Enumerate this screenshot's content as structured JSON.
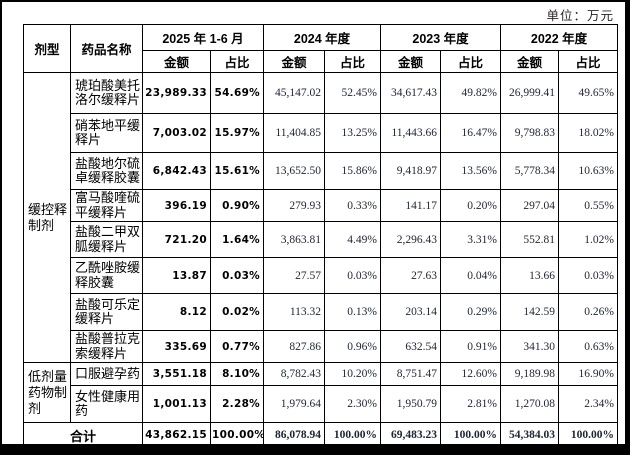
{
  "unit_label": "单位：万元",
  "table": {
    "headers": {
      "dosage_form": "剂型",
      "drug_name": "药品名称",
      "amount": "金额",
      "ratio": "占比",
      "periods": [
        {
          "label": "2025 年 1-6 月"
        },
        {
          "label": "2024 年度"
        },
        {
          "label": "2023 年度"
        },
        {
          "label": "2022 年度"
        }
      ]
    },
    "groups": [
      {
        "dosage_form": "缓控释制剂",
        "drugs": [
          {
            "name": "琥珀酸美托洛尔缓释片",
            "values": [
              "23,989.33",
              "54.69%",
              "45,147.02",
              "52.45%",
              "34,617.43",
              "49.82%",
              "26,999.41",
              "49.65%"
            ]
          },
          {
            "name": "硝苯地平缓释片",
            "values": [
              "7,003.02",
              "15.97%",
              "11,404.85",
              "13.25%",
              "11,443.66",
              "16.47%",
              "9,798.83",
              "18.02%"
            ]
          },
          {
            "name": "盐酸地尔硫卓缓释胶囊",
            "values": [
              "6,842.43",
              "15.61%",
              "13,652.50",
              "15.86%",
              "9,418.97",
              "13.56%",
              "5,778.34",
              "10.63%"
            ]
          },
          {
            "name": "富马酸喹硫平缓释片",
            "values": [
              "396.19",
              "0.90%",
              "279.93",
              "0.33%",
              "141.17",
              "0.20%",
              "297.04",
              "0.55%"
            ]
          },
          {
            "name": "盐酸二甲双胍缓释片",
            "values": [
              "721.20",
              "1.64%",
              "3,863.81",
              "4.49%",
              "2,296.43",
              "3.31%",
              "552.81",
              "1.02%"
            ]
          },
          {
            "name": "乙酰唑胺缓释胶囊",
            "values": [
              "13.87",
              "0.03%",
              "27.57",
              "0.03%",
              "27.63",
              "0.04%",
              "13.66",
              "0.03%"
            ]
          },
          {
            "name": "盐酸可乐定缓释片",
            "values": [
              "8.12",
              "0.02%",
              "113.32",
              "0.13%",
              "203.14",
              "0.29%",
              "142.59",
              "0.26%"
            ]
          },
          {
            "name": "盐酸普拉克索缓释片",
            "values": [
              "335.69",
              "0.77%",
              "827.86",
              "0.96%",
              "632.54",
              "0.91%",
              "341.30",
              "0.63%"
            ]
          }
        ]
      },
      {
        "dosage_form": "低剂量药物制剂",
        "drugs": [
          {
            "name": "口服避孕药",
            "values": [
              "3,551.18",
              "8.10%",
              "8,782.43",
              "10.20%",
              "8,751.47",
              "12.60%",
              "9,189.98",
              "16.90%"
            ]
          },
          {
            "name": "女性健康用药",
            "values": [
              "1,001.13",
              "2.28%",
              "1,979.64",
              "2.30%",
              "1,950.79",
              "2.81%",
              "1,270.08",
              "2.34%"
            ]
          }
        ]
      }
    ],
    "total": {
      "label": "合计",
      "values": [
        "43,862.15",
        "100.00%",
        "86,078.94",
        "100.00%",
        "69,483.23",
        "100.00%",
        "54,384.03",
        "100.00%"
      ]
    }
  }
}
